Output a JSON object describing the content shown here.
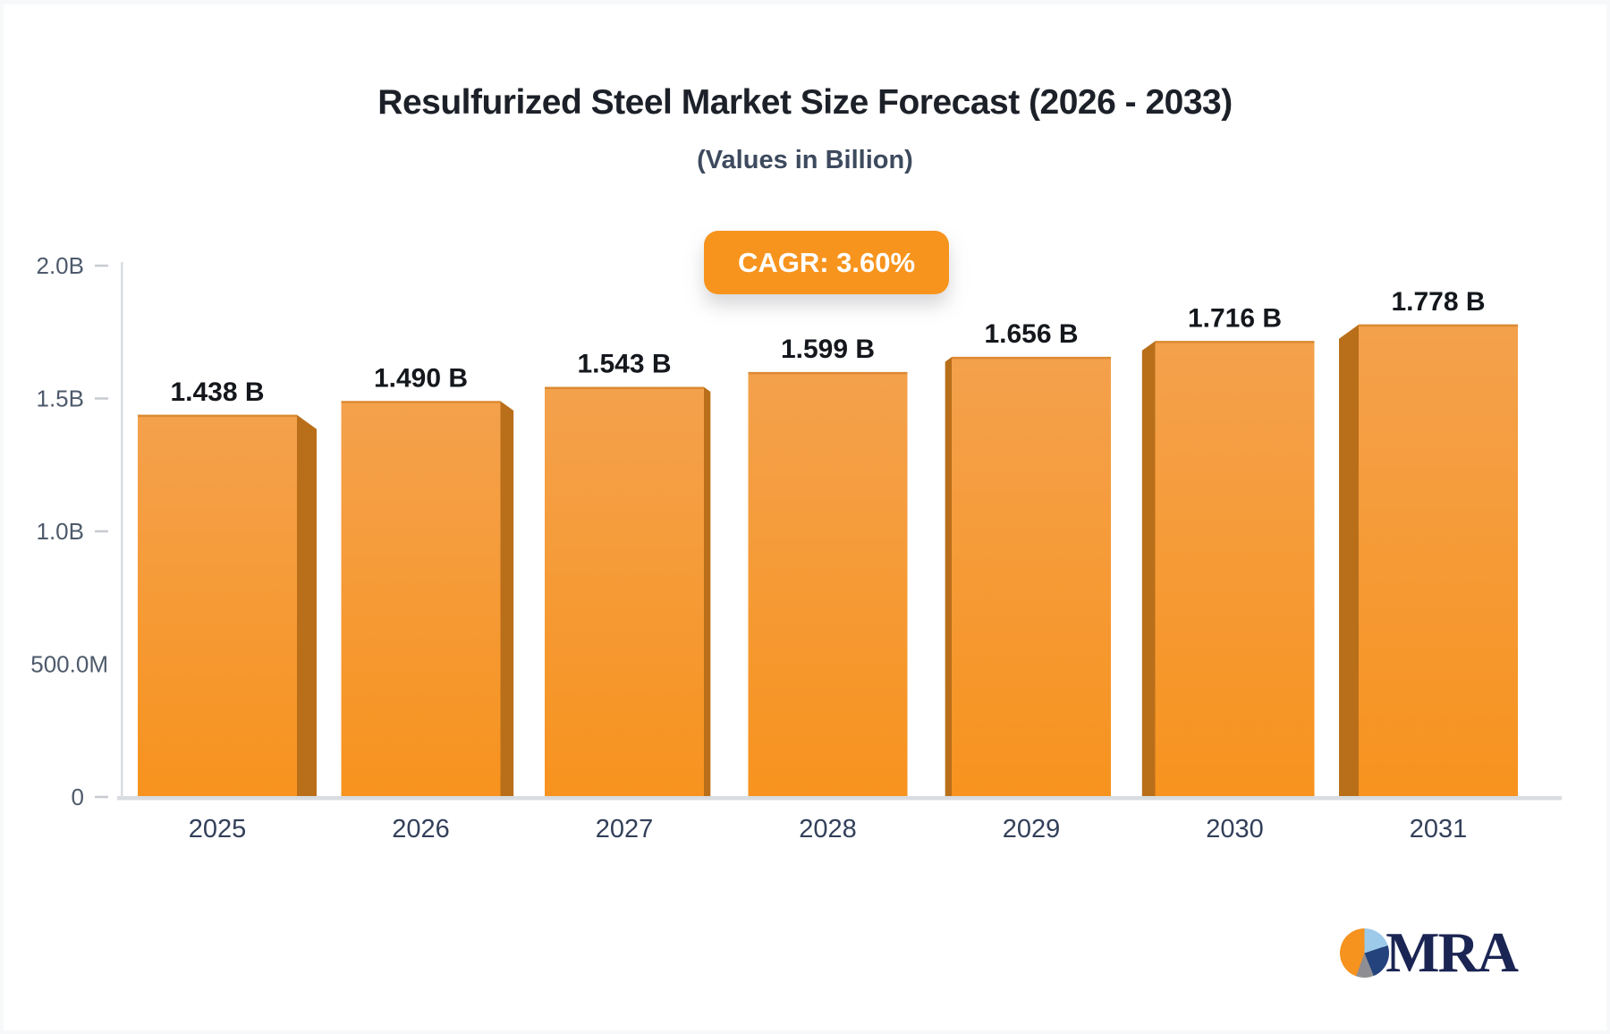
{
  "header": {
    "title": "Resulfurized Steel Market Size Forecast (2026 - 2033)",
    "subtitle": "(Values in Billion)",
    "cagr_badge": "CAGR: 3.60%"
  },
  "chart_data": {
    "type": "bar",
    "title": "Resulfurized Steel Market Size Forecast (2026 - 2033)",
    "subtitle": "(Values in Billion)",
    "categories": [
      "2025",
      "2026",
      "2027",
      "2028",
      "2029",
      "2030",
      "2031"
    ],
    "values": [
      1.438,
      1.49,
      1.543,
      1.599,
      1.656,
      1.716,
      1.778
    ],
    "value_labels": [
      "1.438 B",
      "1.490 B",
      "1.543 B",
      "1.599 B",
      "1.656 B",
      "1.716 B",
      "1.778 B"
    ],
    "xlabel": "",
    "ylabel": "",
    "ylim": [
      0,
      2.0
    ],
    "y_ticks": [
      {
        "label": "2.0B",
        "value": 2.0,
        "dash": true
      },
      {
        "label": "1.5B",
        "value": 1.5,
        "dash": true
      },
      {
        "label": "1.0B",
        "value": 1.0,
        "dash": true
      },
      {
        "label": "500.0M",
        "value": 0.5,
        "dash": false
      },
      {
        "label": "0",
        "value": 0.0,
        "dash": true
      }
    ],
    "legend": "none",
    "grid": "off",
    "style": "3d-perspective-bars"
  },
  "colors": {
    "bar_front_top": "#f4a14d",
    "bar_front_bottom": "#f7931e",
    "bar_front_edge": "#db8a33",
    "bar_side": "#b96f1a",
    "axis_line": "#d9dce0",
    "tick_dash": "#c7cbd1",
    "y_label": "#4e5a6b",
    "x_label": "#33405a",
    "value_label": "#14171c",
    "badge_bg": "#f7941e",
    "badge_text": "#ffffff"
  },
  "logo": {
    "text": "MRA",
    "pie_colors": [
      "#f6921e",
      "#9dcae9",
      "#24427c",
      "#8f8f93"
    ]
  }
}
